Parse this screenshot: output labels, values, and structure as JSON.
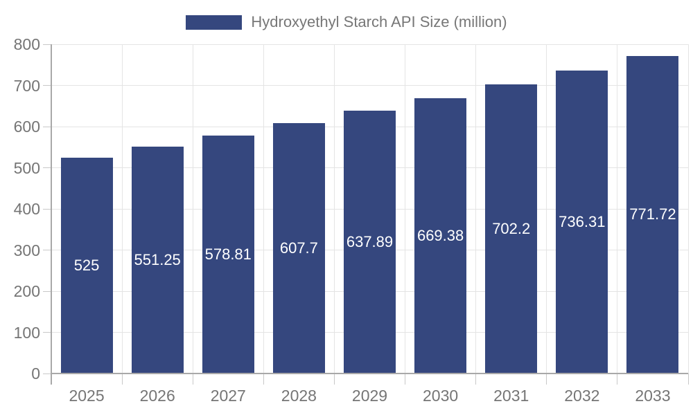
{
  "legend": {
    "label": "Hydroxyethyl Starch API Size (million)"
  },
  "colors": {
    "bar": "#35477e",
    "bar_label": "#ffffff",
    "grid": "#e4e4e4",
    "axis": "#a8a8a8",
    "tick": "#c8c8c8",
    "tick_label": "#757575",
    "legend_text": "#777777",
    "background": "#ffffff"
  },
  "chart_data": {
    "type": "bar",
    "title": "Hydroxyethyl Starch API Size (million)",
    "categories": [
      "2025",
      "2026",
      "2027",
      "2028",
      "2029",
      "2030",
      "2031",
      "2032",
      "2033"
    ],
    "values": [
      525,
      551.25,
      578.81,
      607.7,
      637.89,
      669.38,
      702.2,
      736.31,
      771.72
    ],
    "value_labels": [
      "525",
      "551.25",
      "578.81",
      "607.7",
      "637.89",
      "669.38",
      "702.2",
      "736.31",
      "771.72"
    ],
    "xlabel": "",
    "ylabel": "",
    "ylim": [
      0,
      800
    ],
    "yticks": [
      0,
      100,
      200,
      300,
      400,
      500,
      600,
      700,
      800
    ],
    "grid": true,
    "legend_position": "top-center",
    "bar_label_position": "inside-middle"
  }
}
